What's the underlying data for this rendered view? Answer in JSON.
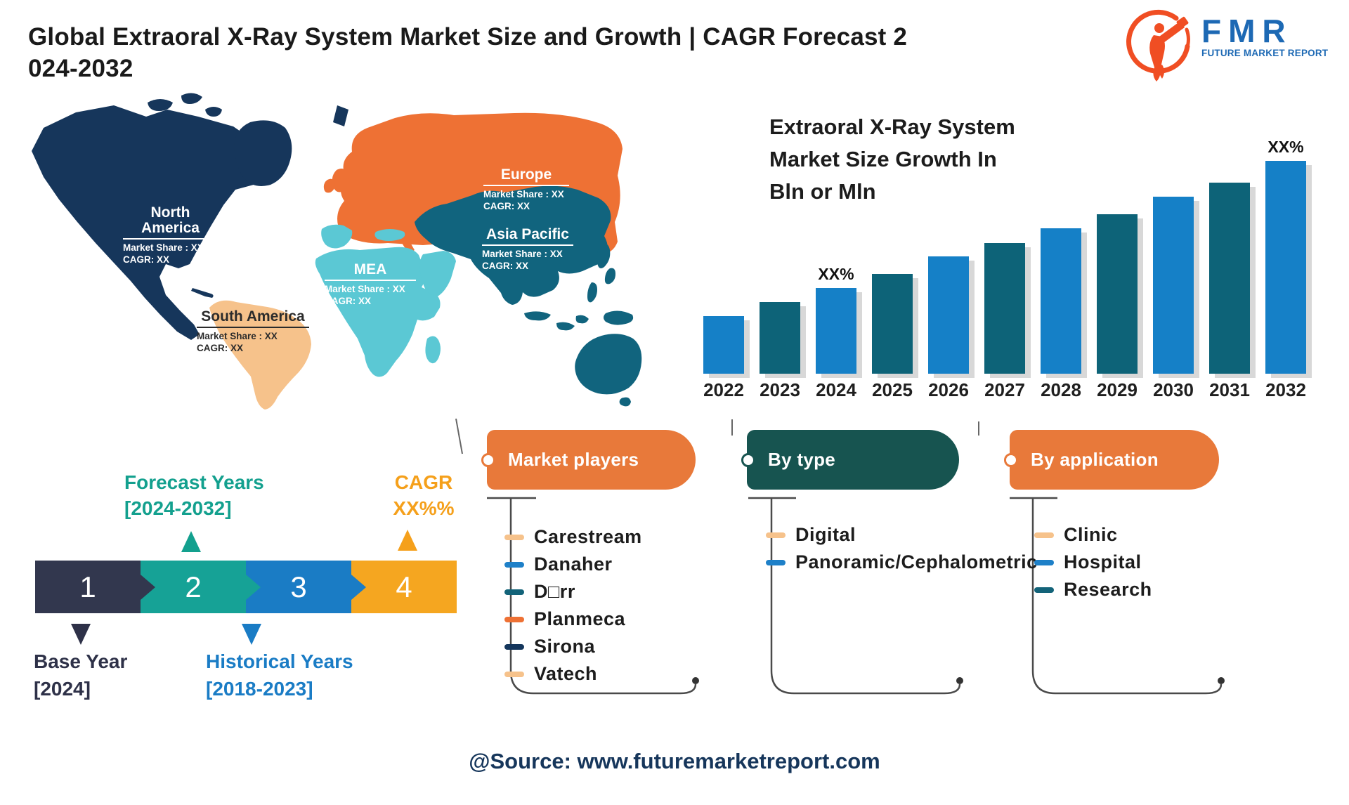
{
  "page": {
    "title_lines": [
      "Global Extraoral X-Ray System Market Size and Growth | CAGR Forecast 2",
      "024-2032"
    ],
    "source": "@Source: www.futuremarketreport.com"
  },
  "logo": {
    "abbr": "FMR",
    "name": "FUTURE MARKET REPORT",
    "brand_orange": "#F04E23",
    "brand_blue": "#1D69B4"
  },
  "map": {
    "regions": [
      {
        "id": "north-america",
        "name": "North America",
        "share_label": "Market Share : XX",
        "cagr_label": "CAGR: XX",
        "color": "#16365B",
        "text": "light"
      },
      {
        "id": "europe",
        "name": "Europe",
        "share_label": "Market Share : XX",
        "cagr_label": "CAGR: XX",
        "color": "#EE7134",
        "text": "light"
      },
      {
        "id": "asia-pacific",
        "name": "Asia Pacific",
        "share_label": "Market Share : XX",
        "cagr_label": "CAGR: XX",
        "color": "#11647E",
        "text": "light"
      },
      {
        "id": "mea",
        "name": "MEA",
        "share_label": "Market Share : XX",
        "cagr_label": "CAGR: XX",
        "color": "#5BC8D4",
        "text": "light"
      },
      {
        "id": "south-america",
        "name": "South America",
        "share_label": "Market Share : XX",
        "cagr_label": "CAGR: XX",
        "color": "#F6C28B",
        "text": "dark"
      }
    ]
  },
  "chart_data": {
    "type": "bar",
    "title_lines": [
      "Extraoral X-Ray System",
      "Market Size Growth In",
      "Bln or Mln"
    ],
    "categories": [
      "2022",
      "2023",
      "2024",
      "2025",
      "2026",
      "2027",
      "2028",
      "2029",
      "2030",
      "2031",
      "2032"
    ],
    "values": [
      82,
      102,
      122,
      142,
      167,
      186,
      207,
      227,
      252,
      272,
      303
    ],
    "value_unit": "relative-px",
    "bar_labels": [
      null,
      null,
      "XX%",
      null,
      null,
      null,
      null,
      null,
      null,
      null,
      "XX%"
    ],
    "bar_colors": [
      "#1580C7",
      "#0D6378"
    ],
    "xlabel": "",
    "ylabel": "",
    "axis_visible": false,
    "grid": false,
    "legend": "none"
  },
  "timeline": {
    "segments": [
      {
        "number": "1",
        "color": "#32374E"
      },
      {
        "number": "2",
        "color": "#16A296"
      },
      {
        "number": "3",
        "color": "#1A7CC5"
      },
      {
        "number": "4",
        "color": "#F5A620"
      }
    ],
    "annotations": {
      "forecast": {
        "line1": "Forecast Years",
        "line2": "[2024-2032]",
        "color": "#13A08E"
      },
      "cagr": {
        "line1": "CAGR",
        "line2": "XX%%",
        "color": "#F5A01B"
      },
      "base": {
        "line1": "Base Year",
        "line2": "[2024]",
        "color": "#2E3148"
      },
      "historical": {
        "line1": "Historical Years",
        "line2": "[2018-2023]",
        "color": "#1A7CC5"
      }
    }
  },
  "sections": [
    {
      "id": "market-players",
      "title": "Market players",
      "pill_color": "#E8793A",
      "items": [
        {
          "label": "Carestream",
          "dash": "#F6C28B"
        },
        {
          "label": "Danaher",
          "dash": "#1E80C8"
        },
        {
          "label": "D□rr",
          "dash": "#136379"
        },
        {
          "label": "Planmeca",
          "dash": "#EE7134"
        },
        {
          "label": "Sirona",
          "dash": "#14365C"
        },
        {
          "label": "Vatech",
          "dash": "#F6C28B"
        }
      ]
    },
    {
      "id": "by-type",
      "title": "By type",
      "pill_color": "#175450",
      "items": [
        {
          "label": "Digital",
          "dash": "#F6C28B"
        },
        {
          "label": "Panoramic/Cephalometric",
          "dash": "#1E80C8"
        }
      ]
    },
    {
      "id": "by-application",
      "title": "By application",
      "pill_color": "#E8793A",
      "items": [
        {
          "label": "Clinic",
          "dash": "#F6C28B"
        },
        {
          "label": "Hospital",
          "dash": "#1E80C8"
        },
        {
          "label": "Research",
          "dash": "#136379"
        }
      ]
    }
  ]
}
